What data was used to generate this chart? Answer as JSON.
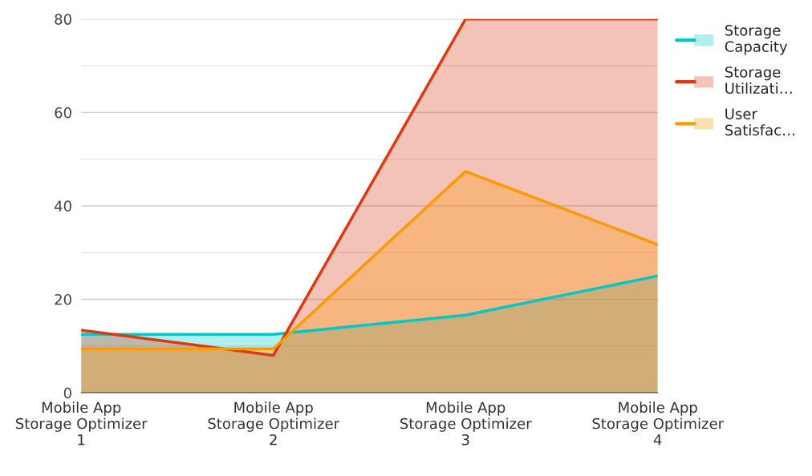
{
  "chart_data": {
    "type": "area",
    "categories": [
      "Mobile App Storage Optimizer 1",
      "Mobile App Storage Optimizer 2",
      "Mobile App Storage Optimizer 3",
      "Mobile App Storage Optimizer 4"
    ],
    "series": [
      {
        "name": "Storage Capacity",
        "color": "#00c8c8",
        "values": [
          12.5,
          12.5,
          16.6,
          25
        ]
      },
      {
        "name": "Storage Utilizati…",
        "color": "#dc3912",
        "values": [
          13.4,
          8.0,
          80,
          80
        ]
      },
      {
        "name": "User Satisfac…",
        "color": "#ff9900",
        "values": [
          9.4,
          9.4,
          47.4,
          31.7
        ]
      }
    ],
    "ylim": [
      0,
      80
    ],
    "yticks": [
      0,
      20,
      40,
      60,
      80
    ],
    "grid": "y",
    "legend": "right"
  }
}
